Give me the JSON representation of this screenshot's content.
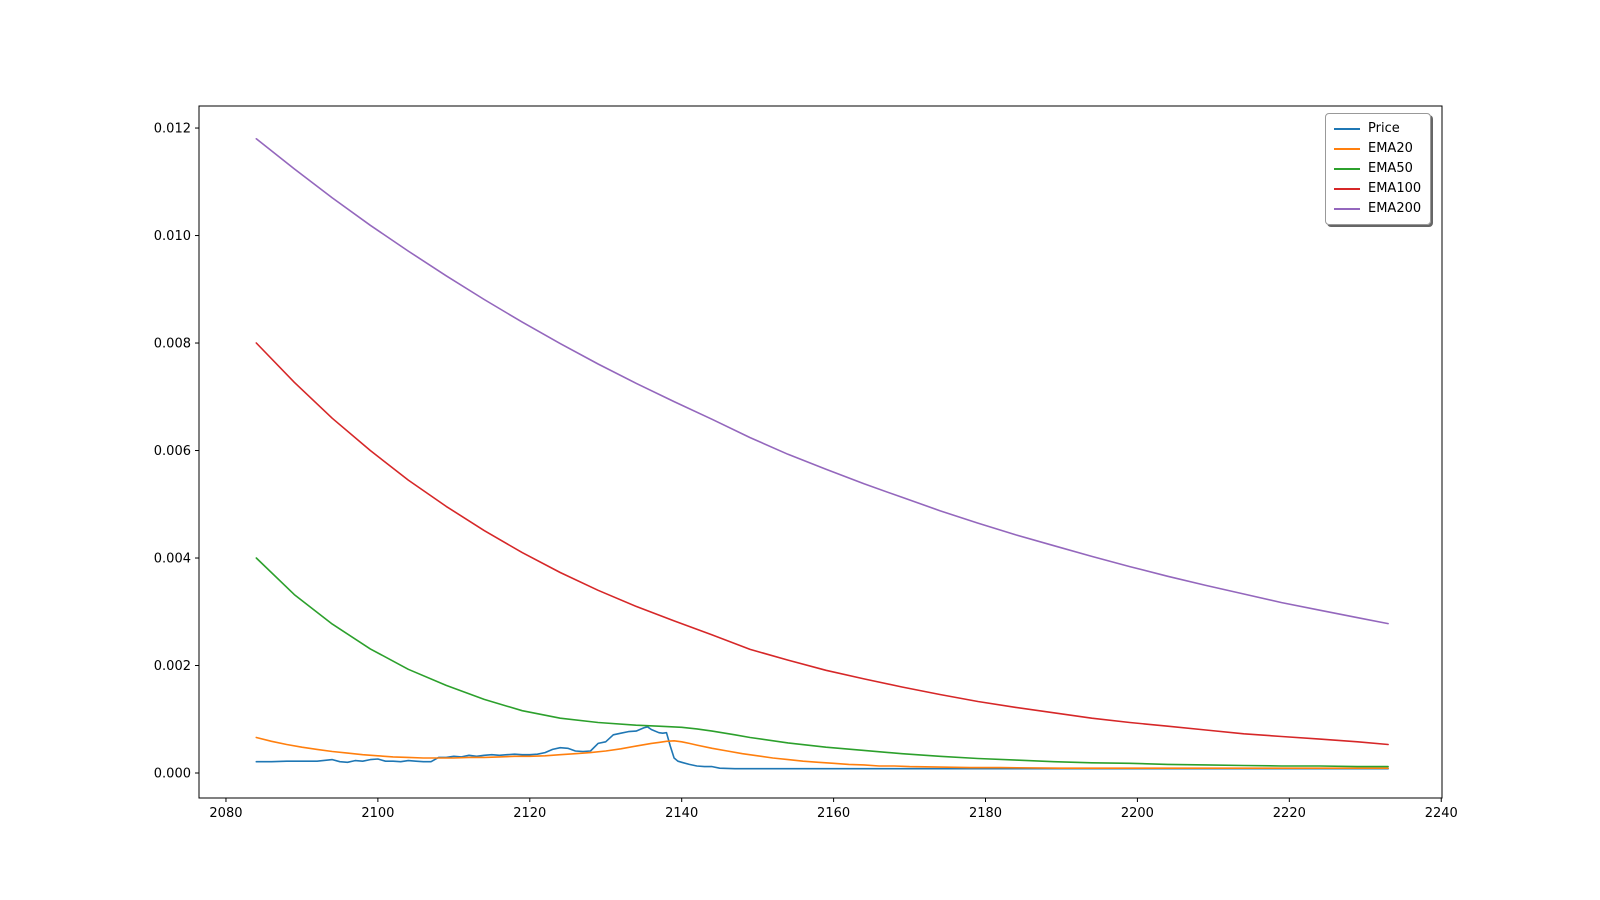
{
  "figure": {
    "background_color": "#ffffff",
    "title": ""
  },
  "chart_data": {
    "type": "line",
    "title": "",
    "xlabel": "",
    "ylabel": "",
    "grid": false,
    "xlim": [
      2076.45,
      2240.1
    ],
    "ylim": [
      -0.000465,
      0.01241
    ],
    "x_ticks": [
      {
        "v": 2080,
        "label": "2080"
      },
      {
        "v": 2100,
        "label": "2100"
      },
      {
        "v": 2120,
        "label": "2120"
      },
      {
        "v": 2140,
        "label": "2140"
      },
      {
        "v": 2160,
        "label": "2160"
      },
      {
        "v": 2180,
        "label": "2180"
      },
      {
        "v": 2200,
        "label": "2200"
      },
      {
        "v": 2220,
        "label": "2220"
      },
      {
        "v": 2240,
        "label": "2240"
      }
    ],
    "y_ticks": [
      {
        "v": 0.0,
        "label": "0.000"
      },
      {
        "v": 0.002,
        "label": "0.002"
      },
      {
        "v": 0.004,
        "label": "0.004"
      },
      {
        "v": 0.006,
        "label": "0.006"
      },
      {
        "v": 0.008,
        "label": "0.008"
      },
      {
        "v": 0.01,
        "label": "0.010"
      },
      {
        "v": 0.012,
        "label": "0.012"
      }
    ],
    "legend": {
      "position": "upper right",
      "entries": [
        "Price",
        "EMA20",
        "EMA50",
        "EMA100",
        "EMA200"
      ]
    },
    "series": [
      {
        "name": "Price",
        "color": "#1f77b4",
        "points": [
          [
            2084,
            0.00021
          ],
          [
            2086,
            0.00021
          ],
          [
            2088,
            0.00022
          ],
          [
            2090,
            0.00022
          ],
          [
            2092,
            0.00022
          ],
          [
            2094,
            0.00025
          ],
          [
            2095,
            0.00021
          ],
          [
            2096,
            0.0002
          ],
          [
            2097,
            0.00023
          ],
          [
            2098,
            0.00022
          ],
          [
            2099,
            0.00025
          ],
          [
            2100,
            0.00026
          ],
          [
            2101,
            0.00022
          ],
          [
            2102,
            0.00022
          ],
          [
            2103,
            0.00021
          ],
          [
            2104,
            0.00023
          ],
          [
            2105,
            0.00022
          ],
          [
            2106,
            0.00021
          ],
          [
            2107,
            0.00021
          ],
          [
            2108,
            0.00029
          ],
          [
            2109,
            0.00029
          ],
          [
            2110,
            0.00031
          ],
          [
            2111,
            0.0003
          ],
          [
            2112,
            0.00033
          ],
          [
            2113,
            0.00031
          ],
          [
            2114,
            0.00033
          ],
          [
            2115,
            0.00034
          ],
          [
            2116,
            0.00033
          ],
          [
            2117,
            0.00034
          ],
          [
            2118,
            0.00035
          ],
          [
            2119,
            0.00034
          ],
          [
            2120,
            0.00034
          ],
          [
            2121,
            0.00035
          ],
          [
            2122,
            0.00038
          ],
          [
            2123,
            0.00044
          ],
          [
            2124,
            0.00047
          ],
          [
            2125,
            0.00046
          ],
          [
            2126,
            0.00041
          ],
          [
            2127,
            0.0004
          ],
          [
            2128,
            0.00041
          ],
          [
            2129,
            0.00055
          ],
          [
            2130,
            0.00058
          ],
          [
            2131,
            0.00071
          ],
          [
            2132,
            0.00074
          ],
          [
            2133,
            0.00077
          ],
          [
            2134,
            0.00078
          ],
          [
            2135,
            0.00084
          ],
          [
            2135.5,
            0.00086
          ],
          [
            2136,
            0.00081
          ],
          [
            2137,
            0.00075
          ],
          [
            2137.5,
            0.00074
          ],
          [
            2138,
            0.00075
          ],
          [
            2138.5,
            0.0005
          ],
          [
            2139,
            0.00028
          ],
          [
            2139.5,
            0.00022
          ],
          [
            2140,
            0.0002
          ],
          [
            2141,
            0.00016
          ],
          [
            2142,
            0.00013
          ],
          [
            2143,
            0.00012
          ],
          [
            2144,
            0.00012
          ],
          [
            2145,
            9e-05
          ],
          [
            2147,
            8e-05
          ],
          [
            2150,
            8e-05
          ],
          [
            2155,
            8e-05
          ],
          [
            2160,
            8e-05
          ],
          [
            2170,
            8e-05
          ],
          [
            2180,
            8e-05
          ],
          [
            2190,
            8e-05
          ],
          [
            2200,
            8e-05
          ],
          [
            2210,
            8e-05
          ],
          [
            2220,
            8e-05
          ],
          [
            2233,
            8e-05
          ]
        ]
      },
      {
        "name": "EMA20",
        "color": "#ff7f0e",
        "points": [
          [
            2084,
            0.00066
          ],
          [
            2086,
            0.00059
          ],
          [
            2088,
            0.00053
          ],
          [
            2090,
            0.00048
          ],
          [
            2092,
            0.00044
          ],
          [
            2094,
            0.0004
          ],
          [
            2096,
            0.00037
          ],
          [
            2098,
            0.00034
          ],
          [
            2100,
            0.00032
          ],
          [
            2102,
            0.0003
          ],
          [
            2104,
            0.00029
          ],
          [
            2106,
            0.00028
          ],
          [
            2108,
            0.00028
          ],
          [
            2110,
            0.00028
          ],
          [
            2112,
            0.00029
          ],
          [
            2114,
            0.00029
          ],
          [
            2116,
            0.0003
          ],
          [
            2118,
            0.00031
          ],
          [
            2120,
            0.00031
          ],
          [
            2122,
            0.00032
          ],
          [
            2124,
            0.00034
          ],
          [
            2126,
            0.00036
          ],
          [
            2128,
            0.00038
          ],
          [
            2130,
            0.00041
          ],
          [
            2132,
            0.00045
          ],
          [
            2134,
            0.0005
          ],
          [
            2136,
            0.00055
          ],
          [
            2137,
            0.00057
          ],
          [
            2138,
            0.00059
          ],
          [
            2139,
            0.0006
          ],
          [
            2140,
            0.00058
          ],
          [
            2141,
            0.00055
          ],
          [
            2142,
            0.00052
          ],
          [
            2144,
            0.00046
          ],
          [
            2146,
            0.00041
          ],
          [
            2148,
            0.00036
          ],
          [
            2150,
            0.00032
          ],
          [
            2152,
            0.00028
          ],
          [
            2154,
            0.00025
          ],
          [
            2156,
            0.00022
          ],
          [
            2158,
            0.0002
          ],
          [
            2160,
            0.00018
          ],
          [
            2162,
            0.00016
          ],
          [
            2164,
            0.00015
          ],
          [
            2166,
            0.00013
          ],
          [
            2168,
            0.00013
          ],
          [
            2170,
            0.00012
          ],
          [
            2174,
            0.00011
          ],
          [
            2178,
            0.0001
          ],
          [
            2182,
            0.0001
          ],
          [
            2190,
            9e-05
          ],
          [
            2200,
            9e-05
          ],
          [
            2210,
            9e-05
          ],
          [
            2220,
            9e-05
          ],
          [
            2233,
            9e-05
          ]
        ]
      },
      {
        "name": "EMA50",
        "color": "#2ca02c",
        "points": [
          [
            2084,
            0.004
          ],
          [
            2089,
            0.00332
          ],
          [
            2094,
            0.00277
          ],
          [
            2099,
            0.00231
          ],
          [
            2104,
            0.00193
          ],
          [
            2109,
            0.00163
          ],
          [
            2114,
            0.00137
          ],
          [
            2119,
            0.00116
          ],
          [
            2124,
            0.00102
          ],
          [
            2129,
            0.00094
          ],
          [
            2134,
            0.00089
          ],
          [
            2137,
            0.00087
          ],
          [
            2140,
            0.00085
          ],
          [
            2142,
            0.00082
          ],
          [
            2144,
            0.00078
          ],
          [
            2147,
            0.00071
          ],
          [
            2149,
            0.00066
          ],
          [
            2154,
            0.00056
          ],
          [
            2159,
            0.00048
          ],
          [
            2164,
            0.00042
          ],
          [
            2169,
            0.00036
          ],
          [
            2174,
            0.00031
          ],
          [
            2179,
            0.00027
          ],
          [
            2184,
            0.00024
          ],
          [
            2189,
            0.00021
          ],
          [
            2194,
            0.00019
          ],
          [
            2199,
            0.00018
          ],
          [
            2204,
            0.00016
          ],
          [
            2209,
            0.00015
          ],
          [
            2214,
            0.00014
          ],
          [
            2219,
            0.00013
          ],
          [
            2224,
            0.00013
          ],
          [
            2229,
            0.00012
          ],
          [
            2233,
            0.00012
          ]
        ]
      },
      {
        "name": "EMA100",
        "color": "#d62728",
        "points": [
          [
            2084,
            0.008
          ],
          [
            2089,
            0.00727
          ],
          [
            2094,
            0.0066
          ],
          [
            2099,
            0.006
          ],
          [
            2104,
            0.00545
          ],
          [
            2109,
            0.00496
          ],
          [
            2114,
            0.00451
          ],
          [
            2119,
            0.0041
          ],
          [
            2124,
            0.00373
          ],
          [
            2129,
            0.0034
          ],
          [
            2134,
            0.0031
          ],
          [
            2139,
            0.00283
          ],
          [
            2144,
            0.00257
          ],
          [
            2149,
            0.0023
          ],
          [
            2154,
            0.0021
          ],
          [
            2159,
            0.00191
          ],
          [
            2164,
            0.00175
          ],
          [
            2169,
            0.0016
          ],
          [
            2174,
            0.00146
          ],
          [
            2179,
            0.00133
          ],
          [
            2184,
            0.00122
          ],
          [
            2189,
            0.00112
          ],
          [
            2194,
            0.00102
          ],
          [
            2199,
            0.00094
          ],
          [
            2204,
            0.00087
          ],
          [
            2209,
            0.0008
          ],
          [
            2214,
            0.00073
          ],
          [
            2219,
            0.00068
          ],
          [
            2224,
            0.00063
          ],
          [
            2229,
            0.00058
          ],
          [
            2233,
            0.00053
          ]
        ]
      },
      {
        "name": "EMA200",
        "color": "#9467bd",
        "points": [
          [
            2084,
            0.0118
          ],
          [
            2089,
            0.01124
          ],
          [
            2094,
            0.0107
          ],
          [
            2099,
            0.01019
          ],
          [
            2104,
            0.00971
          ],
          [
            2109,
            0.00925
          ],
          [
            2114,
            0.00881
          ],
          [
            2119,
            0.00839
          ],
          [
            2124,
            0.00799
          ],
          [
            2129,
            0.00761
          ],
          [
            2134,
            0.00725
          ],
          [
            2139,
            0.00691
          ],
          [
            2144,
            0.00658
          ],
          [
            2149,
            0.00624
          ],
          [
            2154,
            0.00593
          ],
          [
            2159,
            0.00565
          ],
          [
            2164,
            0.00538
          ],
          [
            2169,
            0.00513
          ],
          [
            2174,
            0.00488
          ],
          [
            2179,
            0.00465
          ],
          [
            2184,
            0.00443
          ],
          [
            2189,
            0.00423
          ],
          [
            2194,
            0.00403
          ],
          [
            2199,
            0.00384
          ],
          [
            2204,
            0.00366
          ],
          [
            2209,
            0.00349
          ],
          [
            2214,
            0.00333
          ],
          [
            2219,
            0.00317
          ],
          [
            2224,
            0.00303
          ],
          [
            2229,
            0.00289
          ],
          [
            2233,
            0.00278
          ]
        ]
      }
    ]
  }
}
